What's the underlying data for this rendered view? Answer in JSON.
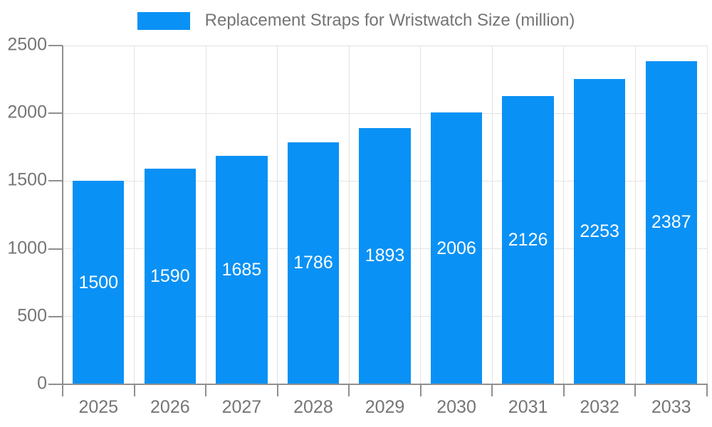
{
  "legend": {
    "label": "Replacement Straps for Wristwatch Size (million)"
  },
  "chart_data": {
    "type": "bar",
    "title": "Replacement Straps for Wristwatch Size (million)",
    "categories": [
      "2025",
      "2026",
      "2027",
      "2028",
      "2029",
      "2030",
      "2031",
      "2032",
      "2033"
    ],
    "values": [
      1500,
      1590,
      1685,
      1786,
      1893,
      2006,
      2126,
      2253,
      2387
    ],
    "value_labels": [
      "1500",
      "1590",
      "1685",
      "1786",
      "1893",
      "2006",
      "2126",
      "2253",
      "2387"
    ],
    "xlabel": "",
    "ylabel": "",
    "ylim": [
      0,
      2500
    ],
    "yticks": [
      0,
      500,
      1000,
      1500,
      2000,
      2500
    ],
    "ytick_labels": [
      "0",
      "500",
      "1000",
      "1500",
      "2000",
      "2500"
    ],
    "grid": true,
    "legend_position": "top",
    "colors": {
      "bar": "#0a91f5",
      "value_label": "#ffffff",
      "axis_text": "#757575",
      "axis_line": "#8f8f8f",
      "gridline": "#e3e3e3",
      "background": "#ffffff"
    }
  }
}
